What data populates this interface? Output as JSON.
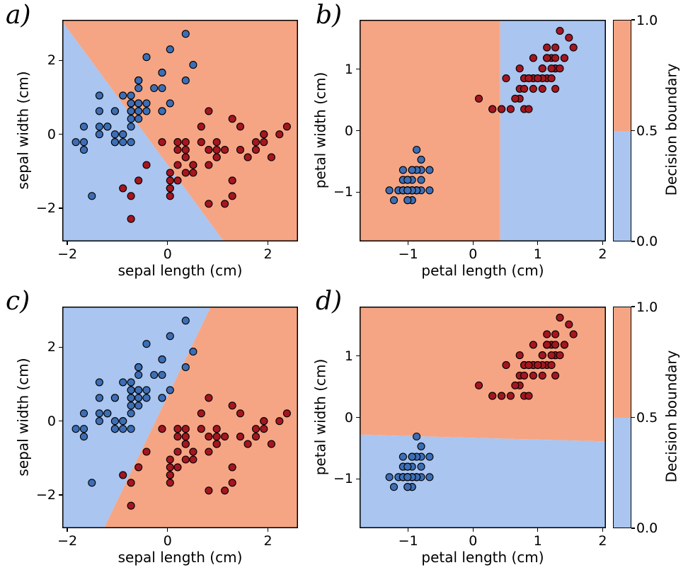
{
  "figure": {
    "background": "#ffffff",
    "point_colors": {
      "class0": "#3d6eb5",
      "class1": "#a41620"
    },
    "point_edge_color": "#000000",
    "region_colors": {
      "class0": "#a9c5f0",
      "class1": "#f5a584"
    },
    "colorbar": {
      "label": "Decision boundary",
      "ticks": [
        "1.0",
        "0.5",
        "0.0"
      ],
      "top_color": "#f5a584",
      "bottom_color": "#a9c5f0"
    }
  },
  "datasets": {
    "sepal": {
      "class0_points": [
        [
          -0.58,
          0.84
        ],
        [
          -0.89,
          -0.21
        ],
        [
          -1.2,
          0.21
        ],
        [
          -1.36,
          0
        ],
        [
          -0.73,
          1.05
        ],
        [
          -0.11,
          1.67
        ],
        [
          -1.36,
          0.63
        ],
        [
          -0.73,
          0.63
        ],
        [
          -1.67,
          -0.42
        ],
        [
          -0.89,
          0
        ],
        [
          -0.11,
          1.25
        ],
        [
          -1.05,
          0.63
        ],
        [
          -1.05,
          -0.21
        ],
        [
          -1.83,
          -0.21
        ],
        [
          0.51,
          1.88
        ],
        [
          0.36,
          2.72
        ],
        [
          -0.11,
          1.67
        ],
        [
          -0.58,
          0.84
        ],
        [
          0.36,
          1.46
        ],
        [
          -0.58,
          1.46
        ],
        [
          -0.11,
          0.63
        ],
        [
          -0.58,
          1.25
        ],
        [
          -1.36,
          1.05
        ],
        [
          -0.58,
          0.42
        ],
        [
          -1.05,
          0.63
        ],
        [
          -0.73,
          -0.21
        ],
        [
          -0.73,
          0.63
        ],
        [
          -0.42,
          0.84
        ],
        [
          -0.42,
          0.63
        ],
        [
          -1.2,
          0.21
        ],
        [
          -1.05,
          0
        ],
        [
          -0.11,
          0.63
        ],
        [
          -0.42,
          2.09
        ],
        [
          0.05,
          2.3
        ],
        [
          -0.89,
          0
        ],
        [
          -0.73,
          0.21
        ],
        [
          0.05,
          0.84
        ],
        [
          -0.89,
          1.05
        ],
        [
          -1.67,
          -0.21
        ],
        [
          -0.58,
          0.63
        ],
        [
          -0.73,
          0.84
        ],
        [
          -1.51,
          -1.67
        ],
        [
          -1.67,
          0.21
        ],
        [
          -0.73,
          0.84
        ],
        [
          -0.58,
          1.46
        ],
        [
          -1.05,
          -0.21
        ],
        [
          -0.58,
          1.46
        ],
        [
          -1.36,
          0.21
        ],
        [
          -0.27,
          1.25
        ],
        [
          -0.73,
          0.42
        ]
      ],
      "class1_points": [
        [
          2.38,
          0.21
        ],
        [
          1.45,
          0.21
        ],
        [
          2.23,
          0
        ],
        [
          0.05,
          -1.67
        ],
        [
          1.6,
          -0.62
        ],
        [
          0.36,
          -0.62
        ],
        [
          1.29,
          0.42
        ],
        [
          -0.89,
          -1.46
        ],
        [
          1.76,
          -0.42
        ],
        [
          -0.42,
          -0.83
        ],
        [
          -0.73,
          -2.29
        ],
        [
          0.67,
          -0.21
        ],
        [
          0.82,
          -1.88
        ],
        [
          0.98,
          -0.42
        ],
        [
          0.2,
          -0.42
        ],
        [
          1.92,
          0
        ],
        [
          0.2,
          -0.21
        ],
        [
          0.51,
          -0.83
        ],
        [
          1.14,
          -1.88
        ],
        [
          0.2,
          -1.25
        ],
        [
          0.67,
          0.21
        ],
        [
          0.98,
          -0.62
        ],
        [
          1.29,
          -1.25
        ],
        [
          0.98,
          -0.62
        ],
        [
          1.45,
          -0.42
        ],
        [
          1.76,
          -0.21
        ],
        [
          2.07,
          -0.62
        ],
        [
          1.92,
          -0.21
        ],
        [
          0.82,
          -0.42
        ],
        [
          0.36,
          -1.04
        ],
        [
          0.05,
          -1.46
        ],
        [
          0.05,
          -1.46
        ],
        [
          0.51,
          -0.83
        ],
        [
          0.82,
          -0.83
        ],
        [
          -0.11,
          -0.21
        ],
        [
          0.82,
          0.63
        ],
        [
          1.92,
          0
        ],
        [
          1.29,
          -1.67
        ],
        [
          0.2,
          -0.21
        ],
        [
          0.05,
          -1.25
        ],
        [
          0.05,
          -1.04
        ],
        [
          0.98,
          -0.21
        ],
        [
          0.51,
          -1.04
        ],
        [
          -0.73,
          -1.67
        ],
        [
          0.2,
          -0.83
        ],
        [
          0.36,
          -0.21
        ],
        [
          0.36,
          -0.42
        ],
        [
          1.14,
          -0.42
        ],
        [
          -0.58,
          -1.25
        ],
        [
          0.36,
          -0.62
        ]
      ]
    },
    "petal": {
      "class0_points": [
        [
          -1.01,
          -0.97
        ],
        [
          -1.01,
          -0.97
        ],
        [
          -1.08,
          -0.97
        ],
        [
          -0.94,
          -0.97
        ],
        [
          -1.01,
          -0.97
        ],
        [
          -0.8,
          -0.64
        ],
        [
          -1.01,
          -0.8
        ],
        [
          -0.94,
          -0.97
        ],
        [
          -1.01,
          -0.97
        ],
        [
          -0.94,
          -1.13
        ],
        [
          -0.94,
          -0.97
        ],
        [
          -0.87,
          -0.97
        ],
        [
          -1.01,
          -1.13
        ],
        [
          -1.22,
          -1.13
        ],
        [
          -1.15,
          -0.97
        ],
        [
          -0.94,
          -0.64
        ],
        [
          -1.08,
          -0.64
        ],
        [
          -1.01,
          -0.8
        ],
        [
          -0.8,
          -0.8
        ],
        [
          -0.94,
          -0.8
        ],
        [
          -0.8,
          -0.97
        ],
        [
          -0.94,
          -0.64
        ],
        [
          -1.29,
          -0.97
        ],
        [
          -0.8,
          -0.47
        ],
        [
          -0.67,
          -0.97
        ],
        [
          -0.87,
          -0.97
        ],
        [
          -0.87,
          -0.64
        ],
        [
          -0.94,
          -0.97
        ],
        [
          -1.01,
          -0.97
        ],
        [
          -0.87,
          -0.97
        ],
        [
          -0.87,
          -0.97
        ],
        [
          -0.94,
          -0.64
        ],
        [
          -0.94,
          -1.13
        ],
        [
          -1.01,
          -0.97
        ],
        [
          -0.94,
          -0.97
        ],
        [
          -1.15,
          -0.97
        ],
        [
          -1.08,
          -0.97
        ],
        [
          -1.01,
          -1.13
        ],
        [
          -1.08,
          -0.97
        ],
        [
          -0.94,
          -0.97
        ],
        [
          -1.08,
          -0.8
        ],
        [
          -1.08,
          -0.8
        ],
        [
          -1.08,
          -0.97
        ],
        [
          -0.87,
          -0.31
        ],
        [
          -0.67,
          -0.64
        ],
        [
          -1.01,
          -0.8
        ],
        [
          -0.87,
          -0.97
        ],
        [
          -1.01,
          -0.97
        ],
        [
          -0.94,
          -0.97
        ],
        [
          -1.01,
          -0.97
        ]
      ],
      "class1_points": [
        [
          1.27,
          1.01
        ],
        [
          1.14,
          1.18
        ],
        [
          1.41,
          1.18
        ],
        [
          0.79,
          0.85
        ],
        [
          1.21,
          1.18
        ],
        [
          1.14,
          0.85
        ],
        [
          1.27,
          1.35
        ],
        [
          0.3,
          0.35
        ],
        [
          1.21,
          0.85
        ],
        [
          0.72,
          1.01
        ],
        [
          0.44,
          0.35
        ],
        [
          0.93,
          1.18
        ],
        [
          0.79,
          0.35
        ],
        [
          1.27,
          1.01
        ],
        [
          0.51,
          0.85
        ],
        [
          1.07,
          1.01
        ],
        [
          1.14,
          1.18
        ],
        [
          0.86,
          0.35
        ],
        [
          1.14,
          1.18
        ],
        [
          0.72,
          0.52
        ],
        [
          1.34,
          1.62
        ],
        [
          0.79,
          0.85
        ],
        [
          1.41,
          1.18
        ],
        [
          1.27,
          0.68
        ],
        [
          1,
          0.85
        ],
        [
          1.07,
          1.01
        ],
        [
          1.34,
          1.01
        ],
        [
          1.48,
          1.51
        ],
        [
          1.14,
          1.18
        ],
        [
          0.44,
          0.35
        ],
        [
          0.65,
          0.52
        ],
        [
          0.58,
          0.35
        ],
        [
          0.72,
          0.68
        ],
        [
          1.55,
          1.35
        ],
        [
          1.14,
          1.18
        ],
        [
          1.14,
          1.35
        ],
        [
          1.27,
          1.18
        ],
        [
          1.07,
          0.85
        ],
        [
          0.86,
          0.85
        ],
        [
          0.79,
          0.85
        ],
        [
          1.07,
          0.68
        ],
        [
          1.21,
          1.01
        ],
        [
          0.79,
          0.68
        ],
        [
          0.3,
          0.35
        ],
        [
          0.93,
          0.85
        ],
        [
          0.93,
          0.68
        ],
        [
          0.93,
          0.85
        ],
        [
          1,
          0.85
        ],
        [
          0.09,
          0.52
        ],
        [
          0.86,
          0.85
        ]
      ]
    }
  },
  "chart_data": [
    {
      "id": "a",
      "label": "a)",
      "type": "scatter",
      "dataset": "sepal",
      "xlabel": "sepal length (cm)",
      "ylabel": "sepal width (cm)",
      "xlim": [
        -2.1,
        2.6
      ],
      "ylim": [
        -2.9,
        3.1
      ],
      "xticks": [
        [
          -2,
          "−2"
        ],
        [
          0,
          "0"
        ],
        [
          2,
          "2"
        ]
      ],
      "yticks": [
        [
          -2,
          "−2"
        ],
        [
          0,
          "0"
        ],
        [
          2,
          "2"
        ]
      ],
      "boundary_line": {
        "slope": -1.85,
        "intercept": -0.83
      },
      "regions": [
        {
          "class": 1,
          "color": "#f5a584",
          "polygon": [
            [
              -2.1,
              3.1
            ],
            [
              2.6,
              3.1
            ],
            [
              2.6,
              -2.9
            ],
            [
              1.12,
              -2.9
            ],
            [
              -2.1,
              3.055
            ]
          ]
        },
        {
          "class": 0,
          "color": "#a9c5f0",
          "polygon": [
            [
              -2.1,
              3.055
            ],
            [
              1.12,
              -2.9
            ],
            [
              -2.1,
              -2.9
            ]
          ]
        }
      ]
    },
    {
      "id": "b",
      "label": "b)",
      "type": "scatter",
      "dataset": "petal",
      "xlabel": "petal length (cm)",
      "ylabel": "petal width (cm)",
      "xlim": [
        -1.75,
        2.05
      ],
      "ylim": [
        -1.8,
        1.8
      ],
      "xticks": [
        [
          -1,
          "−1"
        ],
        [
          0,
          "0"
        ],
        [
          1,
          "1"
        ],
        [
          2,
          "2"
        ]
      ],
      "yticks": [
        [
          -1,
          "−1"
        ],
        [
          0,
          "0"
        ],
        [
          1,
          "1"
        ]
      ],
      "boundary_line": {
        "vertical_x": 0.42
      },
      "regions": [
        {
          "class": 1,
          "color": "#f5a584",
          "polygon": [
            [
              -1.75,
              1.8
            ],
            [
              0.42,
              1.8
            ],
            [
              0.42,
              -1.8
            ],
            [
              -1.75,
              -1.8
            ]
          ]
        },
        {
          "class": 0,
          "color": "#a9c5f0",
          "polygon": [
            [
              0.42,
              1.8
            ],
            [
              2.05,
              1.8
            ],
            [
              2.05,
              -1.8
            ],
            [
              0.42,
              -1.8
            ]
          ]
        }
      ]
    },
    {
      "id": "c",
      "label": "c)",
      "type": "scatter",
      "dataset": "sepal",
      "xlabel": "sepal length (cm)",
      "ylabel": "sepal width (cm)",
      "xlim": [
        -2.1,
        2.6
      ],
      "ylim": [
        -2.9,
        3.1
      ],
      "xticks": [
        [
          -2,
          "−2"
        ],
        [
          0,
          "0"
        ],
        [
          2,
          "2"
        ]
      ],
      "yticks": [
        [
          -2,
          "−2"
        ],
        [
          0,
          "0"
        ],
        [
          2,
          "2"
        ]
      ],
      "boundary_line": {
        "slope": 2.81,
        "intercept": 0.67
      },
      "regions": [
        {
          "class": 0,
          "color": "#a9c5f0",
          "polygon": [
            [
              -2.1,
              3.1
            ],
            [
              0.864,
              3.1
            ],
            [
              -1.27,
              -2.9
            ],
            [
              -2.1,
              -2.9
            ]
          ]
        },
        {
          "class": 1,
          "color": "#f5a584",
          "polygon": [
            [
              0.864,
              3.1
            ],
            [
              2.6,
              3.1
            ],
            [
              2.6,
              -2.9
            ],
            [
              -1.27,
              -2.9
            ]
          ]
        }
      ]
    },
    {
      "id": "d",
      "label": "d)",
      "type": "scatter",
      "dataset": "petal",
      "xlabel": "petal length (cm)",
      "ylabel": "petal width (cm)",
      "xlim": [
        -1.75,
        2.05
      ],
      "ylim": [
        -1.8,
        1.8
      ],
      "xticks": [
        [
          -1,
          "−1"
        ],
        [
          0,
          "0"
        ],
        [
          1,
          "1"
        ],
        [
          2,
          "2"
        ]
      ],
      "yticks": [
        [
          -1,
          "−1"
        ],
        [
          0,
          "0"
        ],
        [
          1,
          "1"
        ]
      ],
      "boundary_line": {
        "slope": -0.03,
        "intercept": -0.33
      },
      "regions": [
        {
          "class": 1,
          "color": "#f5a584",
          "polygon": [
            [
              -1.75,
              1.8
            ],
            [
              2.05,
              1.8
            ],
            [
              2.05,
              -0.39
            ],
            [
              -1.75,
              -0.28
            ]
          ]
        },
        {
          "class": 0,
          "color": "#a9c5f0",
          "polygon": [
            [
              -1.75,
              -0.28
            ],
            [
              2.05,
              -0.39
            ],
            [
              2.05,
              -1.8
            ],
            [
              -1.75,
              -1.8
            ]
          ]
        }
      ]
    }
  ]
}
